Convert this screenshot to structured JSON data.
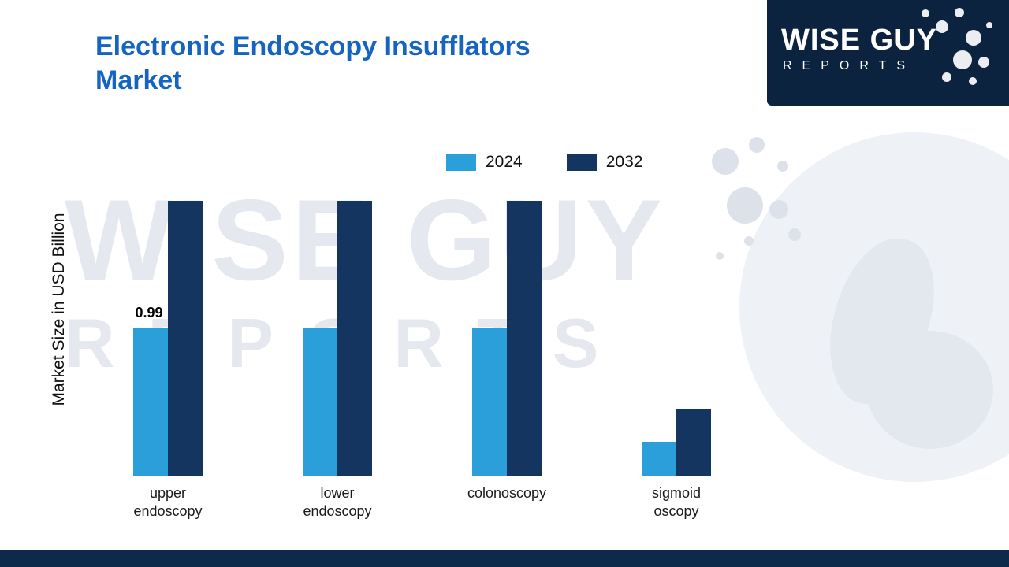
{
  "header": {
    "title": "Electronic Endoscopy Insufflators Market"
  },
  "logo": {
    "line1": "WISE GUY",
    "line2": "REPORTS"
  },
  "watermark": {
    "line1": "WISE GUY",
    "line2": "REPORTS"
  },
  "theme": {
    "title_color": "#1565c0",
    "navy": "#0c2340",
    "footer": "#0d2a4a",
    "circle": "#eef1f5"
  },
  "chart_data": {
    "type": "bar",
    "title": "Electronic Endoscopy Insufflators Market",
    "ylabel": "Market Size in USD Billion",
    "xlabel": "",
    "categories": [
      "upper endoscopy",
      "lower endoscopy",
      "colonoscopy",
      "sigmoidoscopy"
    ],
    "tick_labels": [
      "upper\nendoscopy",
      "lower\nendoscopy",
      "colonoscopy",
      "sigmoid\noscopy"
    ],
    "series": [
      {
        "name": "2024",
        "color": "#2b9fd9",
        "values": [
          0.99,
          0.99,
          0.99,
          0.23
        ]
      },
      {
        "name": "2032",
        "color": "#14355f",
        "values": [
          1.84,
          1.84,
          1.84,
          0.45
        ]
      }
    ],
    "annotations": [
      {
        "series_index": 0,
        "category_index": 0,
        "text": "0.99"
      }
    ],
    "ylim": [
      0,
      2
    ],
    "grid": false,
    "legend_position": "top"
  }
}
